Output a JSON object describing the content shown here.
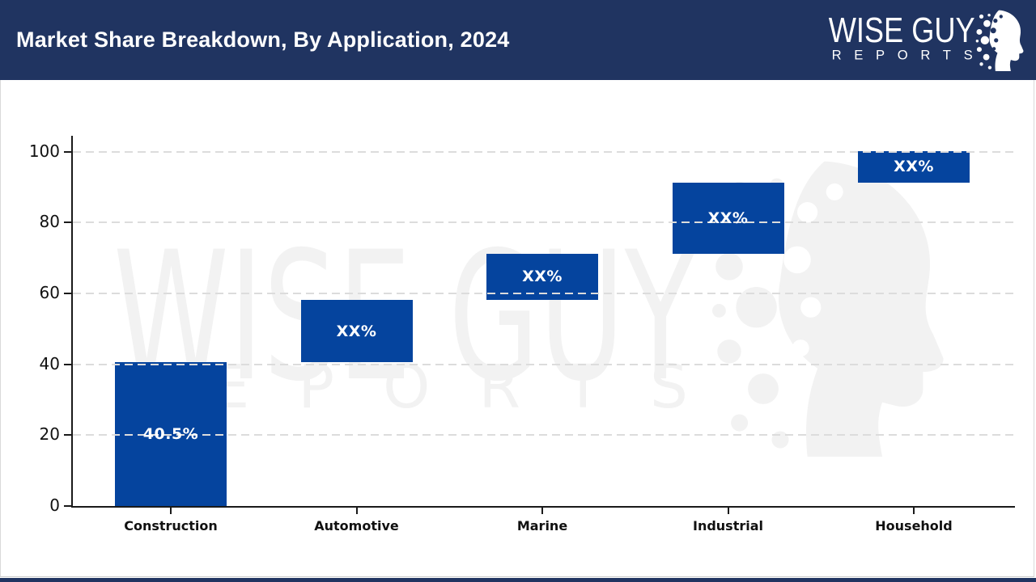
{
  "header": {
    "title": "Market Share Breakdown, By Application, 2024",
    "logo": {
      "line1": "WISE GUY",
      "line2": "REPORTS"
    }
  },
  "watermark": {
    "line1": "WISE GUY",
    "line2": "REPORTS"
  },
  "colors": {
    "header_bg": "#203461",
    "bar": "#05449e",
    "bar_label": "#ffffff",
    "grid": "#dcdcdc",
    "axis": "#1a1a1a",
    "watermark": "#f2f2f2"
  },
  "chart_data": {
    "type": "bar",
    "subtype": "waterfall",
    "title": "Market Share Breakdown, By Application, 2024",
    "categories": [
      "Construction",
      "Automotive",
      "Marine",
      "Industrial",
      "Household"
    ],
    "segments": [
      {
        "category": "Construction",
        "start": 0,
        "end": 40.5,
        "label": "40.5%"
      },
      {
        "category": "Automotive",
        "start": 40.5,
        "end": 58.2,
        "label": "XX%"
      },
      {
        "category": "Marine",
        "start": 58.2,
        "end": 71.2,
        "label": "XX%"
      },
      {
        "category": "Industrial",
        "start": 71.2,
        "end": 91.3,
        "label": "XX%"
      },
      {
        "category": "Household",
        "start": 91.3,
        "end": 100.2,
        "label": "XX%"
      }
    ],
    "yticks": [
      0,
      20,
      40,
      60,
      80,
      100
    ],
    "ylim": [
      0,
      104.4
    ],
    "xlabel": "",
    "ylabel": "",
    "grid": "horizontal dashed",
    "legend": "none"
  }
}
